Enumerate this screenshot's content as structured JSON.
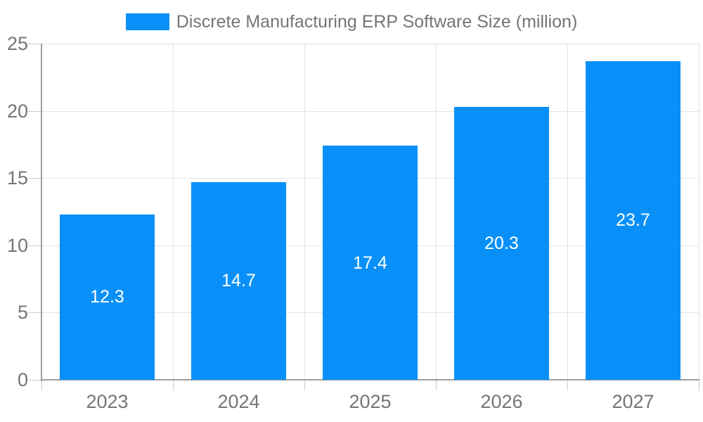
{
  "chart_data": {
    "type": "bar",
    "title": "Discrete Manufacturing ERP Software Size (million)",
    "categories": [
      "2023",
      "2024",
      "2025",
      "2026",
      "2027"
    ],
    "values": [
      12.3,
      14.7,
      17.4,
      20.3,
      23.7
    ],
    "value_labels": [
      "12.3",
      "14.7",
      "17.4",
      "20.3",
      "23.7"
    ],
    "xlabel": "",
    "ylabel": "",
    "ylim": [
      0,
      25
    ],
    "yticks": [
      0,
      5,
      10,
      15,
      20,
      25
    ],
    "ytick_labels": [
      "0",
      "5",
      "10",
      "15",
      "20",
      "25"
    ],
    "grid": true,
    "legend_position": "top-center",
    "bar_labels_position": "center-inside"
  },
  "colors": {
    "bar": "#0990f8",
    "legend_text": "#757575",
    "axis_label_text": "#757575",
    "bar_value_text": "#ffffff",
    "gridline": "#e3e3e3",
    "axis_line": "#9e9e9e",
    "tick": "#cccccc",
    "background": "#ffffff"
  }
}
